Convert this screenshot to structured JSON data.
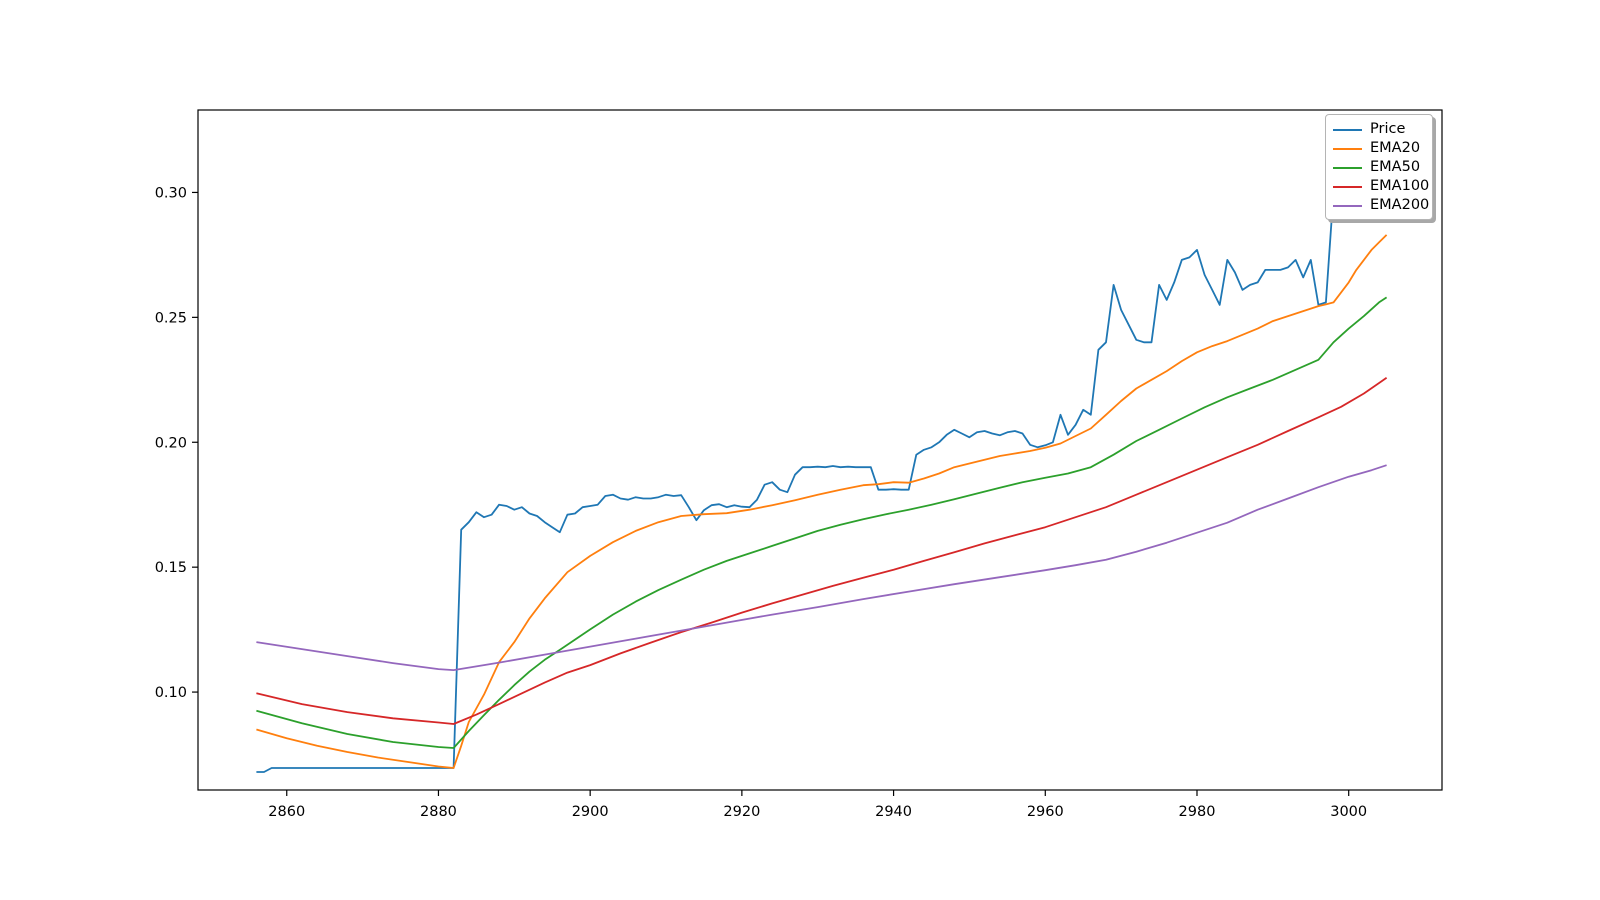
{
  "figure": {
    "background": "#ffffff"
  },
  "chart_data": {
    "type": "line",
    "title": "",
    "xlabel": "",
    "ylabel": "",
    "grid": false,
    "xlim": [
      2848.3,
      3012.3
    ],
    "ylim": [
      0.0608,
      0.333
    ],
    "xticks": [
      2860,
      2880,
      2900,
      2920,
      2940,
      2960,
      2980,
      3000
    ],
    "xtick_labels": [
      "2860",
      "2880",
      "2900",
      "2920",
      "2940",
      "2960",
      "2980",
      "3000"
    ],
    "ytick_values": [
      0.1,
      0.15,
      0.2,
      0.25,
      0.3
    ],
    "ytick_labels": [
      "0.10",
      "0.15",
      "0.20",
      "0.25",
      "0.30"
    ],
    "axis_color": "#000000",
    "legend": {
      "position": "upper right",
      "shadow": true
    },
    "series": [
      {
        "name": "Price",
        "color": "#1f77b4",
        "x_start": 2856,
        "x_step": 1,
        "y": [
          0.068,
          0.068,
          0.0696,
          0.0696,
          0.0696,
          0.0696,
          0.0696,
          0.0696,
          0.0696,
          0.0696,
          0.0696,
          0.0696,
          0.0696,
          0.0696,
          0.0696,
          0.0696,
          0.0696,
          0.0696,
          0.0696,
          0.0696,
          0.0696,
          0.0696,
          0.0696,
          0.0696,
          0.0696,
          0.0696,
          0.0696,
          0.165,
          0.168,
          0.172,
          0.17,
          0.171,
          0.175,
          0.1745,
          0.173,
          0.174,
          0.1715,
          0.1705,
          0.168,
          0.166,
          0.164,
          0.171,
          0.1715,
          0.174,
          0.1745,
          0.175,
          0.1785,
          0.179,
          0.1775,
          0.177,
          0.178,
          0.1775,
          0.1775,
          0.178,
          0.179,
          0.1785,
          0.1788,
          0.174,
          0.1688,
          0.1728,
          0.1748,
          0.1752,
          0.174,
          0.1748,
          0.1742,
          0.174,
          0.177,
          0.183,
          0.184,
          0.181,
          0.18,
          0.187,
          0.19,
          0.19,
          0.1902,
          0.19,
          0.1905,
          0.19,
          0.1902,
          0.19,
          0.19,
          0.19,
          0.181,
          0.181,
          0.1812,
          0.181,
          0.181,
          0.195,
          0.197,
          0.198,
          0.2,
          0.203,
          0.205,
          0.2035,
          0.202,
          0.204,
          0.2045,
          0.2035,
          0.2028,
          0.204,
          0.2045,
          0.2035,
          0.199,
          0.198,
          0.1988,
          0.2,
          0.211,
          0.203,
          0.207,
          0.213,
          0.211,
          0.237,
          0.24,
          0.263,
          0.253,
          0.247,
          0.241,
          0.24,
          0.24,
          0.263,
          0.257,
          0.264,
          0.273,
          0.274,
          0.277,
          0.267,
          0.261,
          0.255,
          0.273,
          0.268,
          0.261,
          0.263,
          0.264,
          0.269,
          0.269,
          0.269,
          0.27,
          0.273,
          0.266,
          0.273,
          0.255,
          0.256,
          0.3,
          0.303,
          0.305,
          0.307,
          0.309,
          0.31,
          0.312,
          0.313
        ]
      },
      {
        "name": "EMA20",
        "color": "#ff7f0e",
        "x": [
          2856,
          2860,
          2864,
          2868,
          2872,
          2876,
          2880,
          2882,
          2883,
          2884,
          2886,
          2888,
          2890,
          2892,
          2894,
          2897,
          2900,
          2903,
          2906,
          2909,
          2912,
          2915,
          2918,
          2921,
          2924,
          2927,
          2930,
          2933,
          2936,
          2938,
          2940,
          2942,
          2944,
          2946,
          2948,
          2950,
          2952,
          2954,
          2956,
          2958,
          2960,
          2962,
          2964,
          2966,
          2968,
          2970,
          2972,
          2974,
          2976,
          2978,
          2980,
          2982,
          2984,
          2986,
          2988,
          2990,
          2992,
          2994,
          2996,
          2997,
          2998,
          2999,
          3000,
          3001,
          3002,
          3003,
          3004,
          3005
        ],
        "y": [
          0.085,
          0.0815,
          0.0785,
          0.076,
          0.0738,
          0.072,
          0.0702,
          0.0696,
          0.0785,
          0.088,
          0.099,
          0.112,
          0.12,
          0.1295,
          0.1375,
          0.148,
          0.1545,
          0.16,
          0.1645,
          0.168,
          0.1705,
          0.1712,
          0.1716,
          0.173,
          0.1748,
          0.1768,
          0.179,
          0.181,
          0.1828,
          0.1832,
          0.184,
          0.1838,
          0.1855,
          0.1875,
          0.19,
          0.1915,
          0.193,
          0.1945,
          0.1955,
          0.1965,
          0.1978,
          0.1995,
          0.2025,
          0.2055,
          0.211,
          0.2165,
          0.2215,
          0.225,
          0.2285,
          0.2325,
          0.236,
          0.2385,
          0.2405,
          0.243,
          0.2455,
          0.2485,
          0.2505,
          0.2525,
          0.2545,
          0.2552,
          0.256,
          0.26,
          0.264,
          0.269,
          0.273,
          0.277,
          0.28,
          0.283
        ]
      },
      {
        "name": "EMA50",
        "color": "#2ca02c",
        "x": [
          2856,
          2862,
          2868,
          2874,
          2880,
          2882,
          2884,
          2886,
          2888,
          2890,
          2892,
          2894,
          2896,
          2898,
          2900,
          2903,
          2906,
          2909,
          2912,
          2915,
          2918,
          2921,
          2924,
          2927,
          2930,
          2933,
          2936,
          2939,
          2942,
          2945,
          2948,
          2951,
          2954,
          2957,
          2960,
          2963,
          2966,
          2969,
          2972,
          2975,
          2978,
          2981,
          2984,
          2987,
          2990,
          2993,
          2996,
          2998,
          3000,
          3002,
          3004,
          3005
        ],
        "y": [
          0.0925,
          0.0875,
          0.0832,
          0.08,
          0.078,
          0.0776,
          0.0844,
          0.0908,
          0.0969,
          0.1028,
          0.1082,
          0.1129,
          0.1169,
          0.121,
          0.1251,
          0.131,
          0.1362,
          0.1408,
          0.145,
          0.149,
          0.1525,
          0.1555,
          0.1585,
          0.1615,
          0.1645,
          0.167,
          0.1692,
          0.1712,
          0.173,
          0.175,
          0.1772,
          0.1795,
          0.1818,
          0.184,
          0.1858,
          0.1875,
          0.19,
          0.195,
          0.2005,
          0.205,
          0.2095,
          0.214,
          0.218,
          0.2215,
          0.225,
          0.229,
          0.233,
          0.24,
          0.2455,
          0.2505,
          0.256,
          0.258
        ]
      },
      {
        "name": "EMA100",
        "color": "#d62728",
        "x": [
          2856,
          2862,
          2868,
          2874,
          2880,
          2882,
          2885,
          2888,
          2891,
          2894,
          2897,
          2900,
          2904,
          2908,
          2912,
          2916,
          2920,
          2924,
          2928,
          2932,
          2936,
          2940,
          2944,
          2948,
          2952,
          2956,
          2960,
          2964,
          2968,
          2972,
          2976,
          2980,
          2984,
          2988,
          2992,
          2996,
          2999,
          3002,
          3005
        ],
        "y": [
          0.0995,
          0.0952,
          0.092,
          0.0895,
          0.0878,
          0.0872,
          0.091,
          0.0952,
          0.0995,
          0.1038,
          0.1078,
          0.1108,
          0.1155,
          0.1198,
          0.124,
          0.1278,
          0.1318,
          0.1355,
          0.139,
          0.1425,
          0.1458,
          0.149,
          0.1525,
          0.156,
          0.1595,
          0.1628,
          0.166,
          0.17,
          0.174,
          0.179,
          0.184,
          0.189,
          0.194,
          0.199,
          0.2045,
          0.21,
          0.2142,
          0.2195,
          0.2258
        ]
      },
      {
        "name": "EMA200",
        "color": "#9467bd",
        "x": [
          2856,
          2862,
          2868,
          2874,
          2880,
          2882,
          2888,
          2894,
          2900,
          2906,
          2912,
          2918,
          2924,
          2930,
          2936,
          2942,
          2948,
          2954,
          2960,
          2964,
          2968,
          2972,
          2976,
          2980,
          2984,
          2988,
          2992,
          2996,
          3000,
          3003,
          3005
        ],
        "y": [
          0.12,
          0.1172,
          0.1144,
          0.1116,
          0.1092,
          0.1088,
          0.1118,
          0.115,
          0.1182,
          0.1214,
          0.1246,
          0.1278,
          0.131,
          0.134,
          0.1372,
          0.1402,
          0.1432,
          0.146,
          0.1488,
          0.1508,
          0.153,
          0.1562,
          0.1598,
          0.1638,
          0.1678,
          0.173,
          0.1775,
          0.182,
          0.1862,
          0.1888,
          0.1908
        ]
      }
    ]
  }
}
